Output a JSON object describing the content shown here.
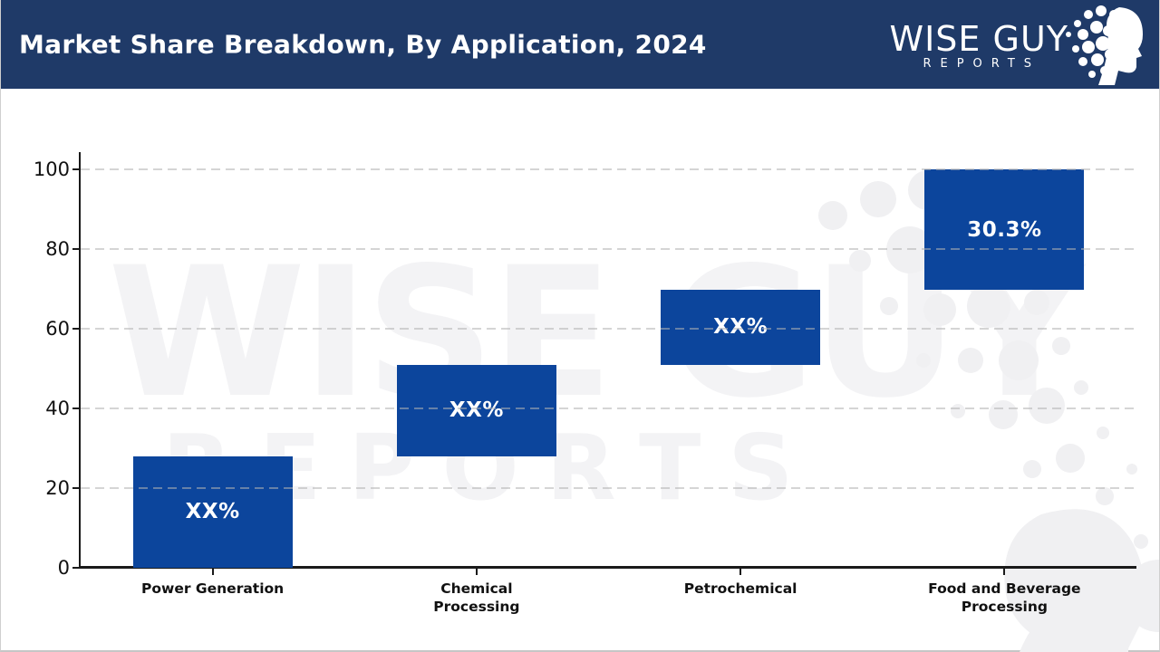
{
  "header": {
    "title": "Market Share Breakdown, By Application, 2024",
    "logo": {
      "line1": "WISE GUY",
      "line2": "REPORTS"
    }
  },
  "watermark": {
    "line1": "WISE GUY",
    "line2": "REPORTS"
  },
  "colors": {
    "header_bg": "#1f3a68",
    "bar_fill": "#0c459c",
    "bar_label": "#ffffff",
    "axis": "#1a1a1a",
    "gridline": "#d9d9d9",
    "watermark": "#f3f3f5"
  },
  "chart_data": {
    "type": "bar",
    "subtype": "floating-waterfall",
    "title": "Market Share Breakdown, By Application, 2024",
    "xlabel": "",
    "ylabel": "",
    "categories": [
      "Power Generation",
      "Chemical Processing",
      "Petrochemical",
      "Food and Beverage Processing"
    ],
    "category_lines": [
      [
        "Power Generation"
      ],
      [
        "Chemical",
        "Processing"
      ],
      [
        "Petrochemical"
      ],
      [
        "Food and Beverage",
        "Processing"
      ]
    ],
    "segments": [
      {
        "category": "Power Generation",
        "start": 0,
        "end": 28,
        "label": "XX%"
      },
      {
        "category": "Chemical Processing",
        "start": 28,
        "end": 51,
        "label": "XX%"
      },
      {
        "category": "Petrochemical",
        "start": 51,
        "end": 69.7,
        "label": "XX%"
      },
      {
        "category": "Food and Beverage Processing",
        "start": 69.7,
        "end": 100,
        "label": "30.3%"
      }
    ],
    "y_ticks": [
      0,
      20,
      40,
      60,
      80,
      100
    ],
    "ylim": [
      0,
      104
    ],
    "grid": "horizontal-dashed",
    "legend": "none"
  }
}
